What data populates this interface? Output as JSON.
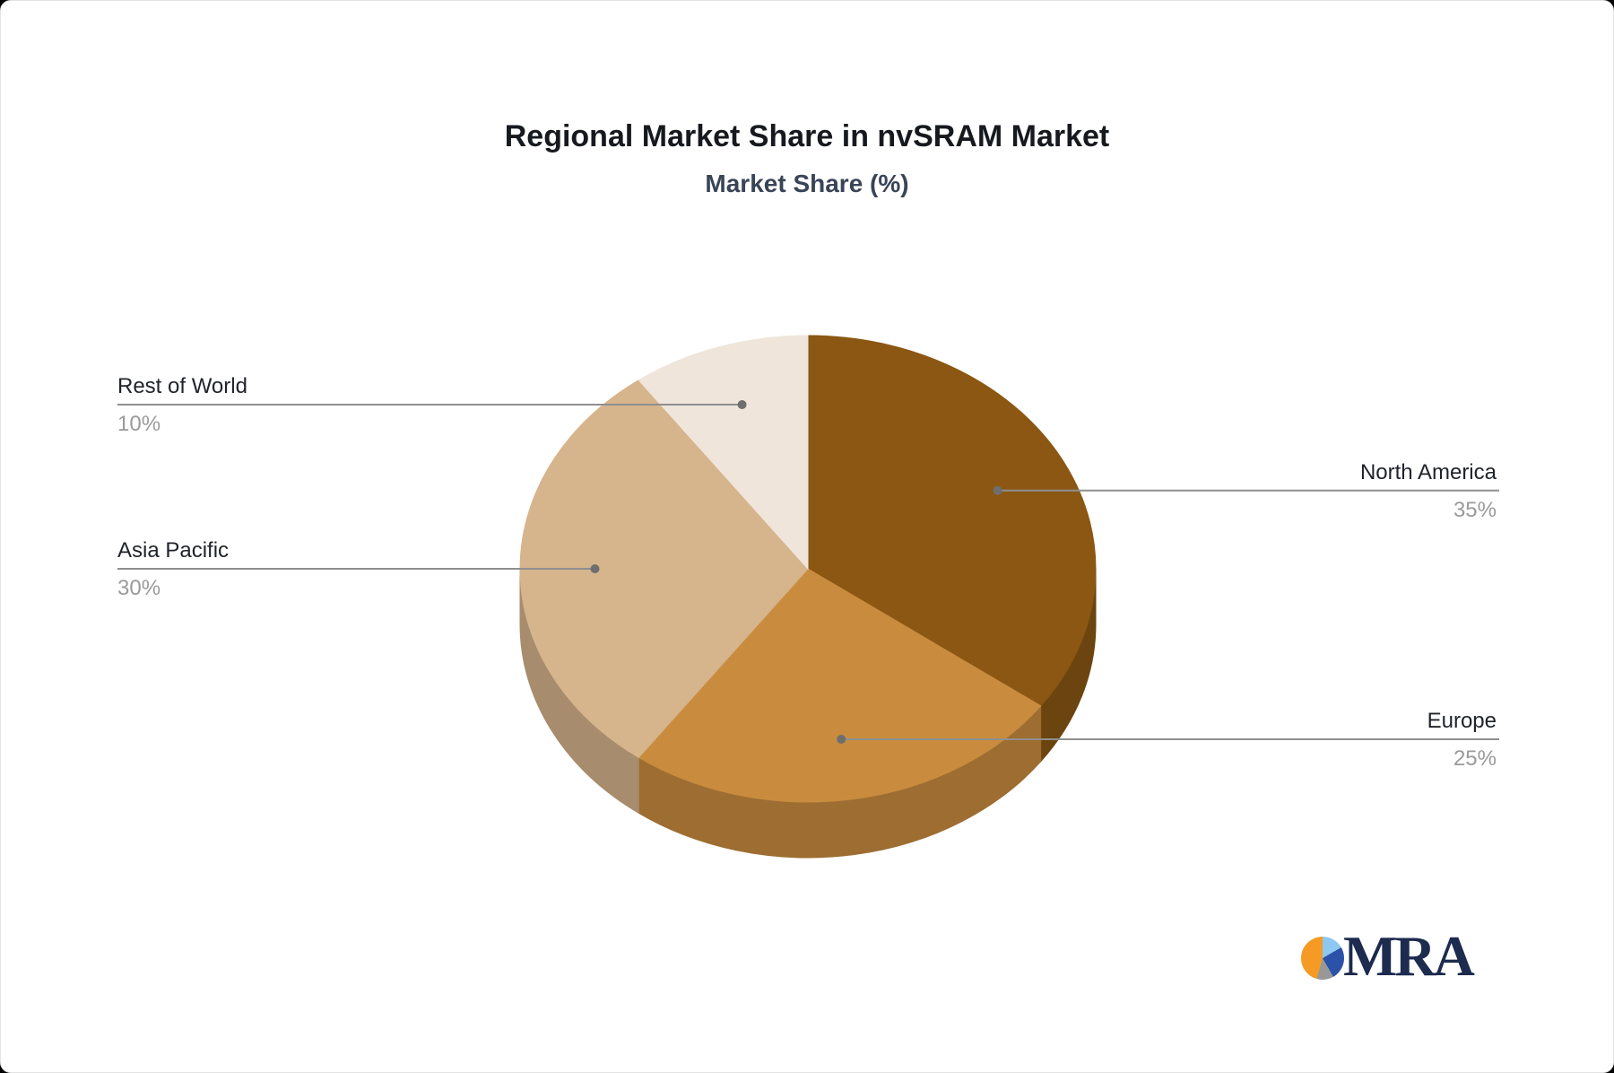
{
  "chart_data": {
    "type": "pie",
    "effect_3d": true,
    "title": "Regional Market Share in nvSRAM Market",
    "subtitle": "Market Share (%)",
    "unit": "%",
    "direction": "clockwise",
    "start_angle_deg": 0,
    "legend": "none",
    "labeling": "callout lines with slice name above line and percent below",
    "series": [
      {
        "label": "North America",
        "value": 35,
        "color": "#8B5713"
      },
      {
        "label": "Europe",
        "value": 25,
        "color": "#C98C3F"
      },
      {
        "label": "Asia Pacific",
        "value": 30,
        "color": "#D6B48C"
      },
      {
        "label": "Rest of World",
        "value": 10,
        "color": "#EFE5DA"
      }
    ]
  },
  "style": {
    "title_color": "#16191e",
    "subtitle_color": "#394557",
    "label_color": "#1f2329",
    "percent_color": "#9a9a9a",
    "leader_line_color": "#8f8f8f",
    "leader_dot_color": "#6e6e6e",
    "background": "#ffffff"
  },
  "logo": {
    "text": "MRA",
    "icon": "pie-chart-icon",
    "icon_colors": [
      "#f59b25",
      "#8cc8ef",
      "#2b52a8",
      "#989898"
    ],
    "text_color": "#1c2b4e"
  }
}
